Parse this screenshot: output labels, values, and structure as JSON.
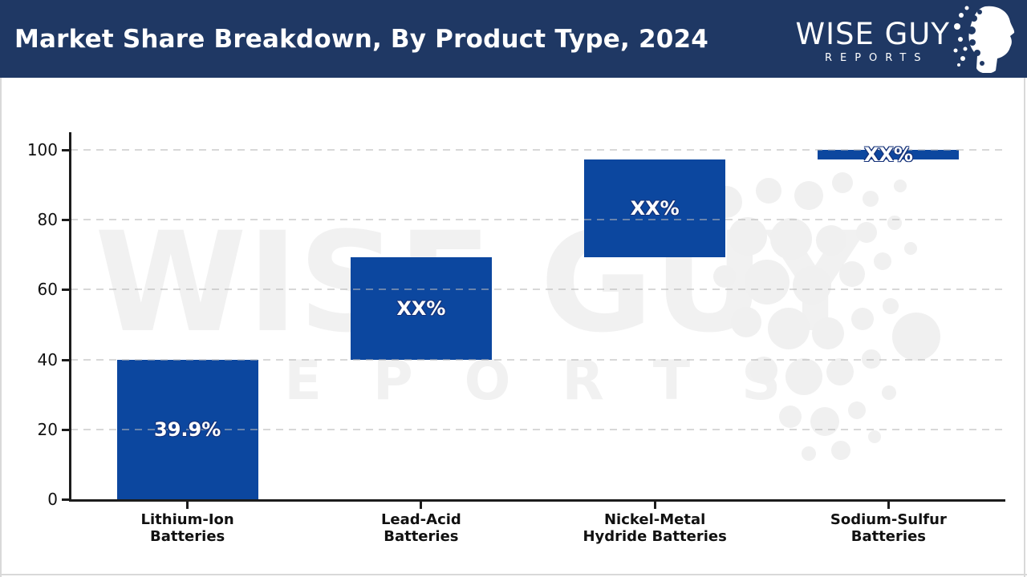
{
  "header": {
    "title": "Market Share Breakdown, By Product Type, 2024",
    "logo": {
      "brand_line1": "WISE GUY",
      "brand_line2": "REPORTS"
    }
  },
  "watermark": {
    "line1": "WISE GUY",
    "line2": "REPORTS"
  },
  "chart_data": {
    "type": "bar",
    "subtype": "waterfall",
    "title": "Market Share Breakdown, By Product Type, 2024",
    "categories": [
      [
        "Lithium-Ion",
        "Batteries"
      ],
      [
        "Lead-Acid",
        "Batteries"
      ],
      [
        "Nickel-Metal",
        "Hydride Batteries"
      ],
      [
        "Sodium-Sulfur",
        "Batteries"
      ]
    ],
    "segments": [
      {
        "category": "Lithium-Ion Batteries",
        "start": 0,
        "end": 39.9,
        "label": "39.9%"
      },
      {
        "category": "Lead-Acid Batteries",
        "start": 39.9,
        "end": 69.2,
        "label": "XX%"
      },
      {
        "category": "Nickel-Metal Hydride Batteries",
        "start": 69.2,
        "end": 97.2,
        "label": "XX%"
      },
      {
        "category": "Sodium-Sulfur Batteries",
        "start": 97.2,
        "end": 100,
        "label": "XX%"
      }
    ],
    "xlabel": "",
    "ylabel": "",
    "ylim": [
      0,
      105
    ],
    "yticks": [
      0,
      20,
      40,
      60,
      80,
      100
    ],
    "grid": "horizontal-dashed",
    "legend": "none",
    "bar_color": "#0c479f"
  },
  "colors": {
    "header_bg": "#1f3864",
    "bar_blue": "#0c479f",
    "label_outline": "#16337a",
    "watermark": "#f1f1f1",
    "axis": "#1c1c1c",
    "frame": "#d9d9d9"
  }
}
